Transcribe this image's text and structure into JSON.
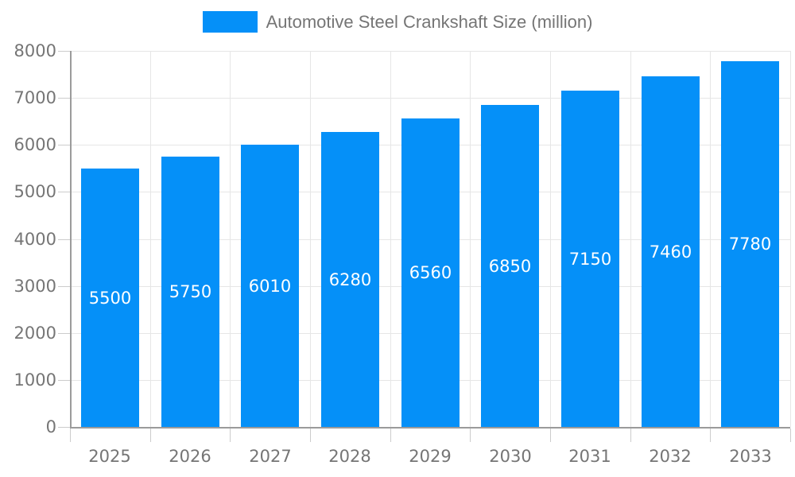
{
  "chart_data": {
    "type": "bar",
    "title": "Automotive Steel Crankshaft Size (million)",
    "categories": [
      "2025",
      "2026",
      "2027",
      "2028",
      "2029",
      "2030",
      "2031",
      "2032",
      "2033"
    ],
    "values": [
      5500,
      5750,
      6010,
      6280,
      6560,
      6850,
      7150,
      7460,
      7780
    ],
    "xlabel": "",
    "ylabel": "",
    "ylim": [
      0,
      8000
    ],
    "ytick_step": 1000,
    "grid": true,
    "legend_position": "top",
    "bar_color": "#0590f8",
    "bar_label_color": "#ffffff",
    "axis_text_color": "#757575",
    "gridline_color": "#e6e6e6",
    "axis_line_color": "#9b9b9b"
  }
}
